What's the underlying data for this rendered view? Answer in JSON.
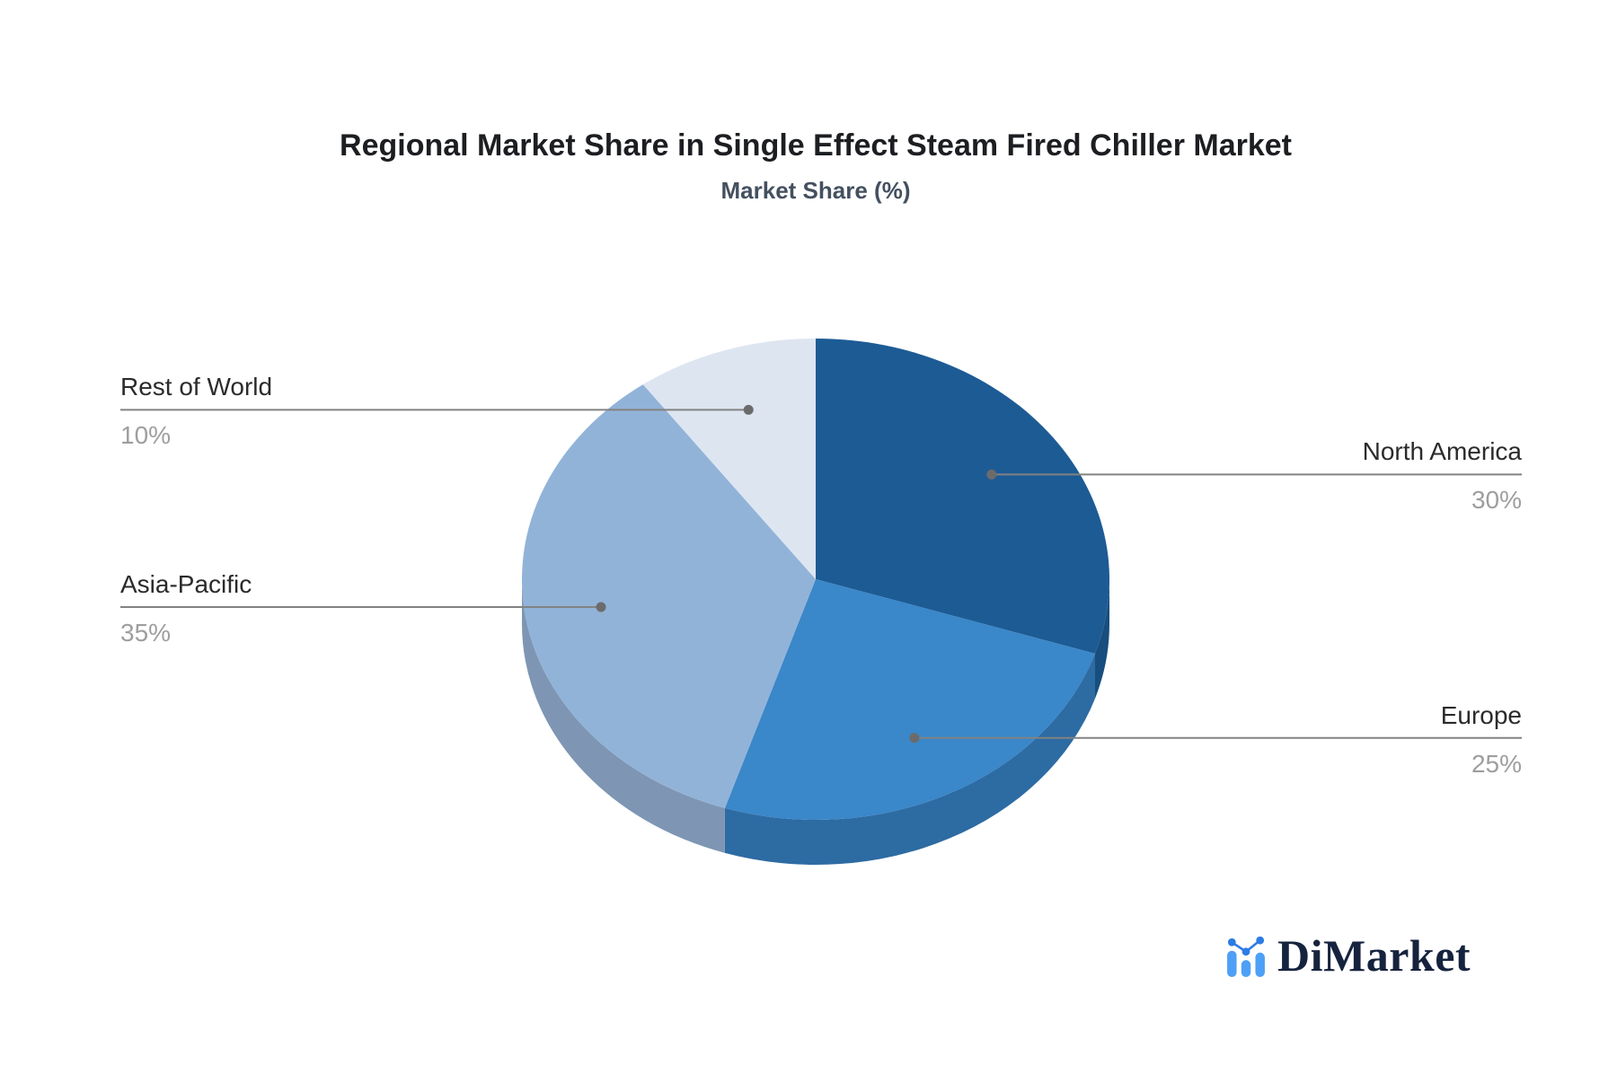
{
  "title": "Regional Market Share in Single Effect Steam Fired Chiller Market",
  "subtitle": "Market Share (%)",
  "chart_data": {
    "type": "pie",
    "style": "3d",
    "unit": "%",
    "direction": "clockwise",
    "start_angle_deg": 0,
    "series": [
      {
        "label": "North America",
        "value": 30,
        "pct": "30%",
        "color": "#1D5B95",
        "side_color": "#174E7E"
      },
      {
        "label": "Europe",
        "value": 25,
        "pct": "25%",
        "color": "#3A87C9",
        "side_color": "#2D6BA3"
      },
      {
        "label": "Asia-Pacific",
        "value": 35,
        "pct": "35%",
        "color": "#92B3D8",
        "side_color": "#7E96B4"
      },
      {
        "label": "Rest of World",
        "value": 10,
        "pct": "10%",
        "color": "#DDE5F1",
        "side_color": "#B9C6D8"
      }
    ],
    "legend_position": "none",
    "leader_lines": true
  },
  "leader_style": {
    "line_color": "#828282",
    "dot_color": "#6b6b6b"
  },
  "logo": {
    "text": "DiMarket",
    "bar_color": "#4DA0F6",
    "dot_color": "#2C7CE5",
    "text_color": "#16233E"
  }
}
